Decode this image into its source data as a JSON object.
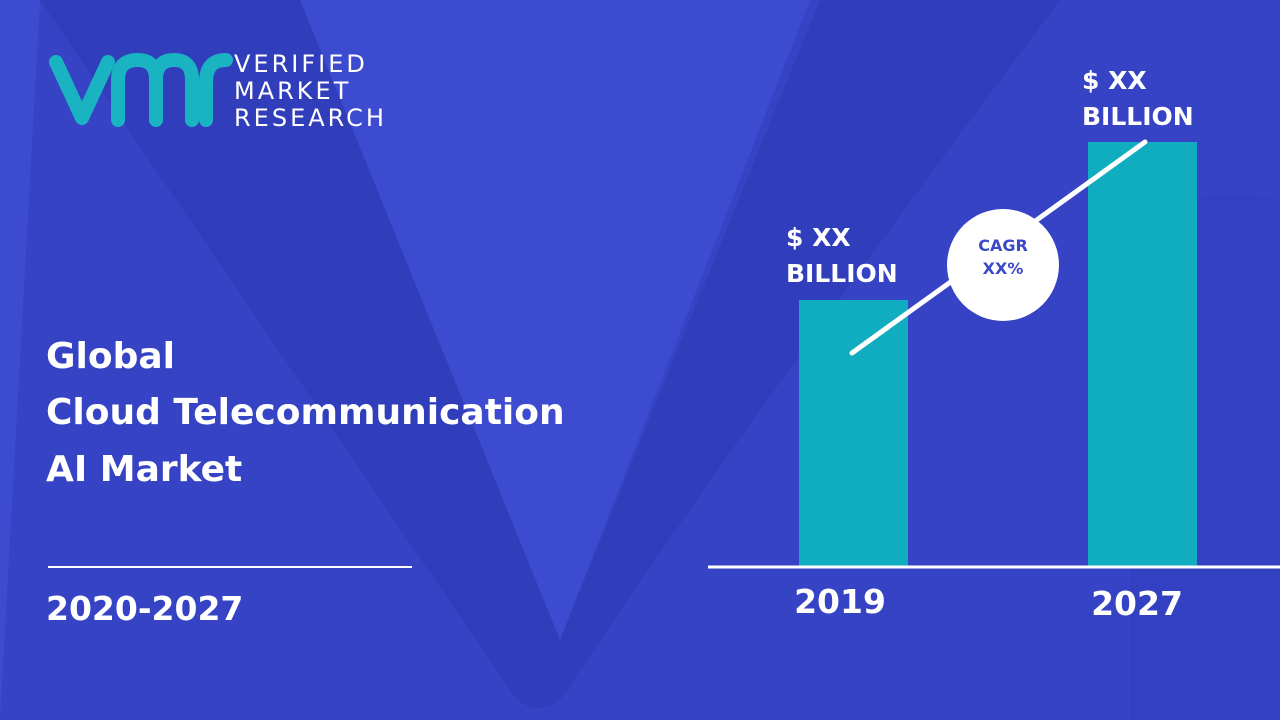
{
  "logo": {
    "lines": [
      "VERIFIED",
      "MARKET",
      "RESEARCH"
    ]
  },
  "title": {
    "lines": [
      "Global",
      "Cloud Telecommunication",
      "AI Market"
    ]
  },
  "period": "2020-2027",
  "chart": {
    "bars": [
      {
        "year": "2019",
        "label_lines": [
          "$ XX",
          "BILLION"
        ]
      },
      {
        "year": "2027",
        "label_lines": [
          "$ XX",
          "BILLION"
        ]
      }
    ],
    "growth": {
      "lines": [
        "CAGR",
        "XX%"
      ]
    }
  }
}
